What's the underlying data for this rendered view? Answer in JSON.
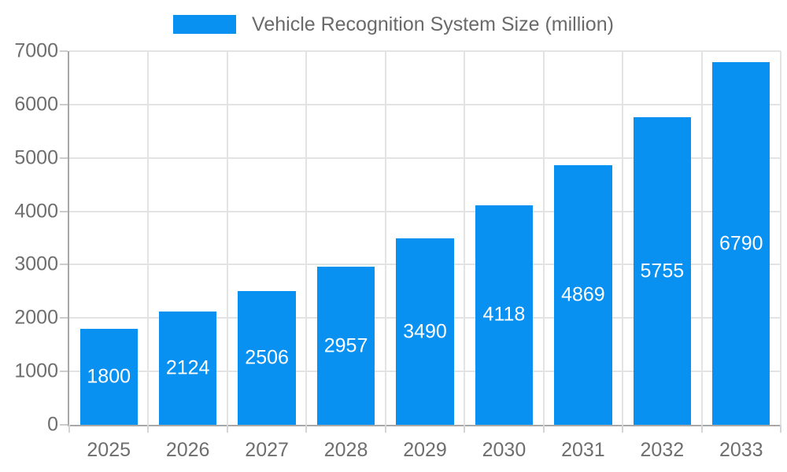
{
  "chart_data": {
    "type": "bar",
    "title": "Vehicle Recognition System Size (million)",
    "series_name": "Vehicle Recognition System Size (million)",
    "categories": [
      "2025",
      "2026",
      "2027",
      "2028",
      "2029",
      "2030",
      "2031",
      "2032",
      "2033"
    ],
    "values": [
      1800,
      2124,
      2506,
      2957,
      3490,
      4118,
      4869,
      5755,
      6790
    ],
    "xlabel": "",
    "ylabel": "",
    "ylim": [
      0,
      7000
    ],
    "yticks": [
      0,
      1000,
      2000,
      3000,
      4000,
      5000,
      6000,
      7000
    ],
    "grid": true,
    "legend_position": "top",
    "bar_color": "#0991f2",
    "bar_label_color": "#ffffff",
    "tick_label_color": "#6e6e6e",
    "legend_text_color": "#6a6a6a",
    "gridline_color": "#e3e3e3",
    "axis_line_color": "#a8a8a8"
  }
}
